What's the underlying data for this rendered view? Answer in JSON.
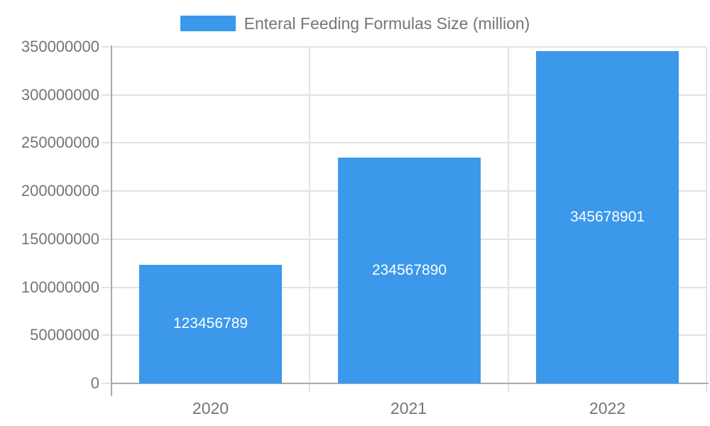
{
  "chart_data": {
    "type": "bar",
    "title": "Enteral Feeding Formulas Size (million)",
    "legend": {
      "label": "Enteral Feeding Formulas Size (million)",
      "position": "top"
    },
    "categories": [
      "2020",
      "2021",
      "2022"
    ],
    "values": [
      123456789,
      234567890,
      345678901
    ],
    "bar_labels": [
      "123456789",
      "234567890",
      "345678901"
    ],
    "xlabel": "",
    "ylabel": "",
    "ylim": [
      0,
      350000000
    ],
    "y_ticks": [
      0,
      50000000,
      100000000,
      150000000,
      200000000,
      250000000,
      300000000,
      350000000
    ],
    "grid": true,
    "colors": {
      "bar": "#3b98eb",
      "grid": "#e2e2e2",
      "axis": "#ababab",
      "text": "#757575",
      "bar_label": "#ffffff",
      "background": "#ffffff"
    }
  }
}
